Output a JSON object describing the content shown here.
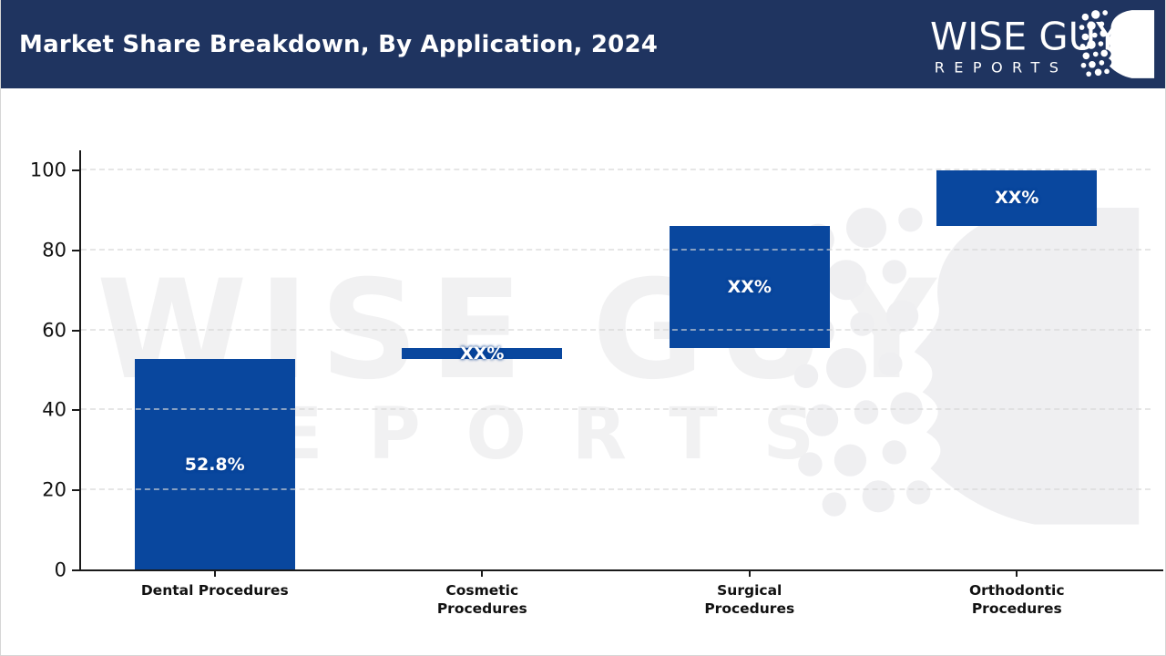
{
  "header": {
    "title": "Market Share Breakdown, By Application, 2024",
    "logo_line1": "WISE GUY",
    "logo_line2": "REPORTS",
    "bg_color": "#1f3460"
  },
  "watermark": {
    "line1": "WISE GUY",
    "line2": "REPORTS"
  },
  "chart_data": {
    "type": "bar",
    "subtype": "waterfall",
    "title": "Market Share Breakdown, By Application, 2024",
    "categories": [
      "Dental Procedures",
      "Cosmetic Procedures",
      "Surgical Procedures",
      "Orthodontic Procedures"
    ],
    "category_label_lines": [
      [
        "Dental Procedures"
      ],
      [
        "Cosmetic",
        "Procedures"
      ],
      [
        "Surgical",
        "Procedures"
      ],
      [
        "Orthodontic",
        "Procedures"
      ]
    ],
    "series": [
      {
        "name": "Market share (%)",
        "segments": [
          {
            "category": "Dental Procedures",
            "start": 0,
            "end": 52.8,
            "label": "52.8%"
          },
          {
            "category": "Cosmetic Procedures",
            "start": 52.8,
            "end": 55.6,
            "label": "XX%"
          },
          {
            "category": "Surgical Procedures",
            "start": 55.6,
            "end": 86.2,
            "label": "XX%"
          },
          {
            "category": "Orthodontic Procedures",
            "start": 86.2,
            "end": 100,
            "label": "XX%"
          }
        ]
      }
    ],
    "bar_color": "#09479e",
    "bar_label_color": "#ffffff",
    "ylim": [
      0,
      105
    ],
    "yticks": [
      0,
      20,
      40,
      60,
      80,
      100
    ],
    "grid": {
      "horizontal": true,
      "style": "dashed"
    },
    "legend": "none",
    "xlabel": "",
    "ylabel": ""
  }
}
